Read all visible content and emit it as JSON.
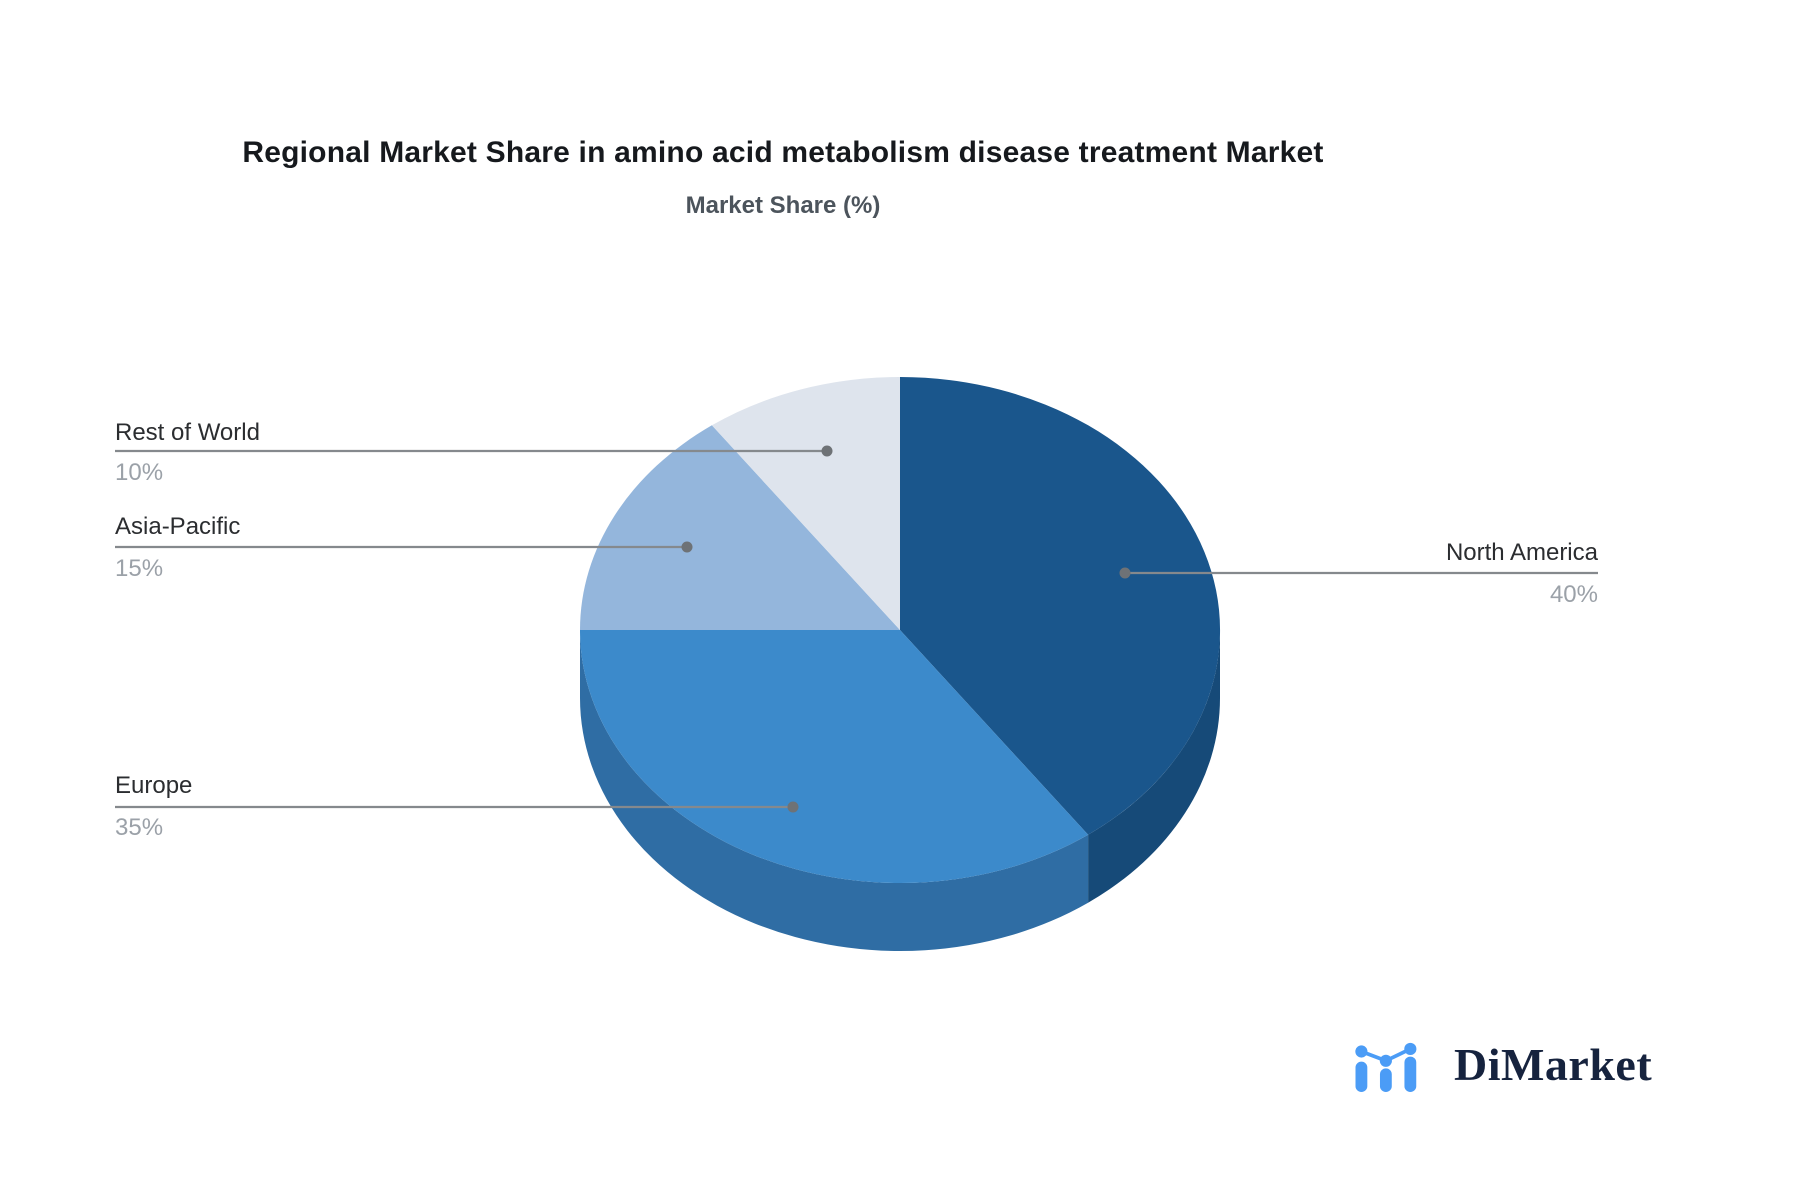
{
  "title": "Regional Market Share in amino acid metabolism disease treatment Market",
  "subtitle": "Market Share (%)",
  "chart_data": {
    "type": "pie",
    "title": "Regional Market Share in amino acid metabolism disease treatment Market",
    "subtitle": "Market Share (%)",
    "unit": "%",
    "style": "3d-pie",
    "start_angle": "12-oclock",
    "direction": "clockwise",
    "legend_position": "callout-labels",
    "slices": [
      {
        "label": "North America",
        "value": 40,
        "pct": "40%",
        "color": "#1A568C",
        "side_color": "#164A78"
      },
      {
        "label": "Europe",
        "value": 35,
        "pct": "35%",
        "color": "#3C8ACB",
        "side_color": "#2F6DA4"
      },
      {
        "label": "Asia-Pacific",
        "value": 15,
        "pct": "15%",
        "color": "#94B6DC",
        "side_color": "#7FA3C9"
      },
      {
        "label": "Rest of World",
        "value": 10,
        "pct": "10%",
        "color": "#DEE4ED",
        "side_color": "#C4CDDA"
      }
    ]
  },
  "callouts": [
    {
      "label": "Rest of World",
      "pct": "10%"
    },
    {
      "label": "Asia-Pacific",
      "pct": "15%"
    },
    {
      "label": "Europe",
      "pct": "35%"
    },
    {
      "label": "North America",
      "pct": "40%"
    }
  ],
  "logo": {
    "text": "DiMarket",
    "icon": "bar-line-chart-icon",
    "text_color": "#16233e",
    "icon_color": "#4b9cf6"
  },
  "colors": {
    "background": "#ffffff",
    "leader_line": "#85898d",
    "leader_dot": "#6e7276",
    "label_text": "#2b2d30",
    "pct_text": "#9ba1a8"
  }
}
